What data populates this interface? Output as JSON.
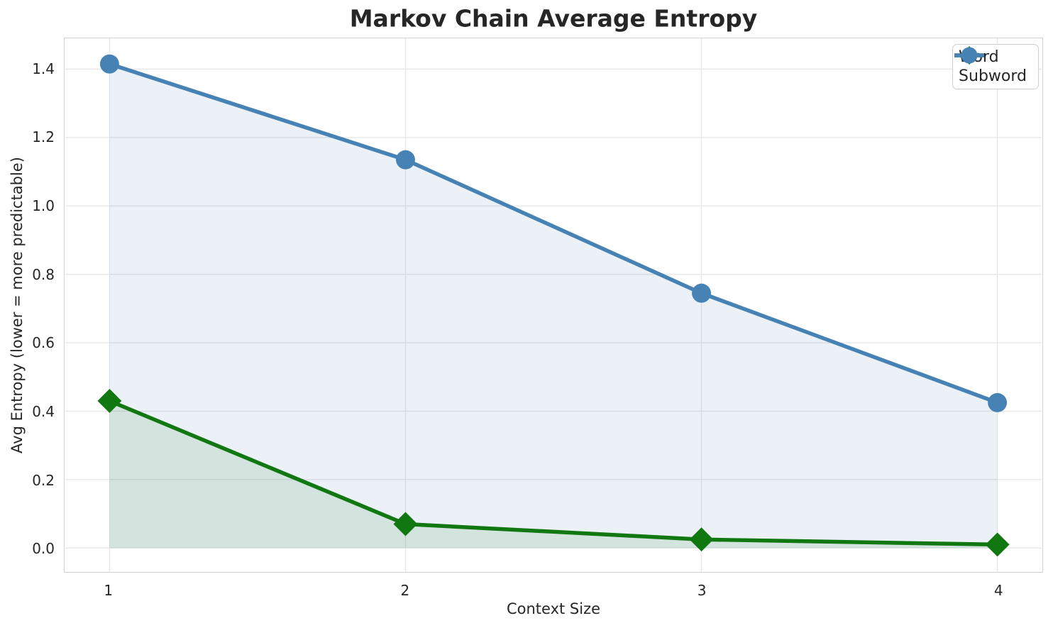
{
  "chart_data": {
    "type": "line",
    "title": "Markov Chain Average Entropy",
    "xlabel": "Context Size",
    "ylabel": "Avg Entropy (lower = more predictable)",
    "x": [
      1,
      2,
      3,
      4
    ],
    "xtick_labels": [
      "1",
      "2",
      "3",
      "4"
    ],
    "ytick_labels": [
      "0.0",
      "0.2",
      "0.4",
      "0.6",
      "0.8",
      "1.0",
      "1.2",
      "1.4"
    ],
    "xlim": [
      0.85,
      4.15
    ],
    "ylim": [
      -0.07,
      1.49
    ],
    "grid": true,
    "legend_position": "upper right",
    "colors": {
      "word": "#117711",
      "subword": "#4682b4",
      "grid": "#e8e8e8",
      "spine": "#d2d2d2",
      "text": "#262626"
    },
    "series": [
      {
        "name": "Word",
        "color": "#117711",
        "marker": "diamond",
        "fill_to_zero": true,
        "values": [
          0.43,
          0.07,
          0.025,
          0.01
        ]
      },
      {
        "name": "Subword",
        "color": "#4682b4",
        "marker": "circle",
        "fill_to_zero": true,
        "values": [
          1.415,
          1.135,
          0.745,
          0.425
        ]
      }
    ]
  }
}
